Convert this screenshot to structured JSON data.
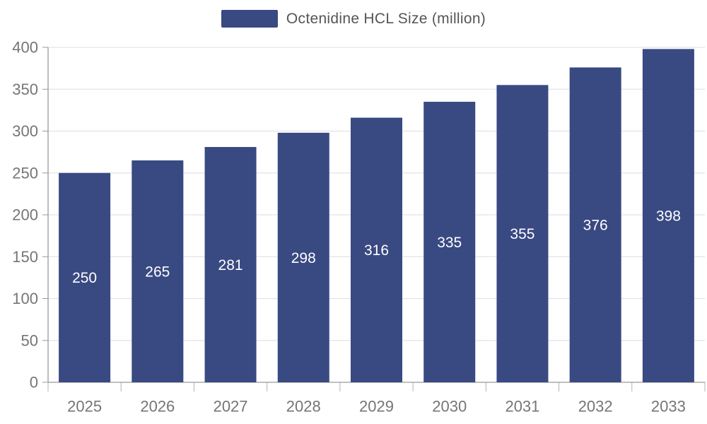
{
  "chart_data": {
    "type": "bar",
    "title": "",
    "xlabel": "",
    "ylabel": "",
    "legend": [
      "Octenidine HCL Size (million)"
    ],
    "legend_position": "top-center",
    "categories": [
      "2025",
      "2026",
      "2027",
      "2028",
      "2029",
      "2030",
      "2031",
      "2032",
      "2033"
    ],
    "series": [
      {
        "name": "Octenidine HCL Size (million)",
        "values": [
          250,
          265,
          281,
          298,
          316,
          335,
          355,
          376,
          398
        ]
      }
    ],
    "value_labels_shown": true,
    "value_label_position": "inside-center",
    "ylim": [
      0,
      400
    ],
    "yticks": [
      0,
      50,
      100,
      150,
      200,
      250,
      300,
      350,
      400
    ],
    "grid": true,
    "colors": {
      "bar": "#394982",
      "grid": "#e2e2e9",
      "axis": "#999999",
      "tick": "#b3b3bc",
      "tick_label": "#757575",
      "value_label": "#ffffff",
      "legend_text": "#555555",
      "background": "#ffffff"
    }
  }
}
